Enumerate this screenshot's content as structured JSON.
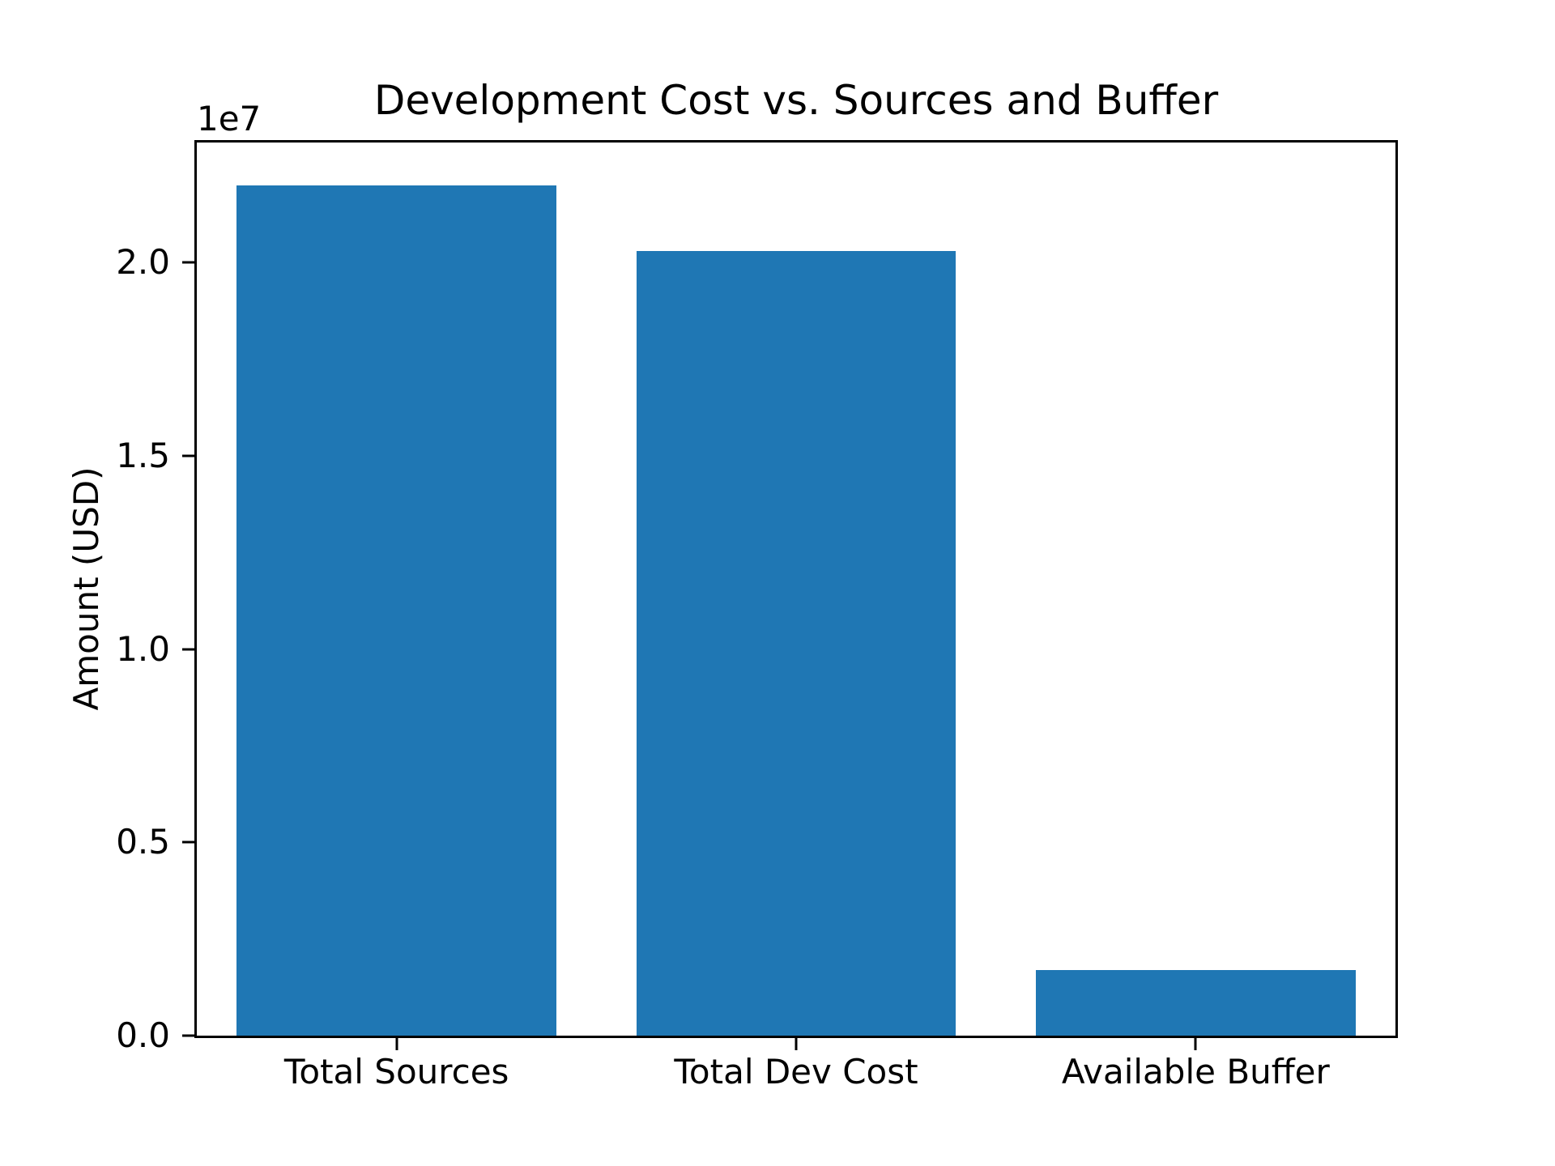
{
  "chart_data": {
    "type": "bar",
    "title": "Development Cost vs. Sources and Buffer",
    "xlabel": "",
    "ylabel": "Amount (USD)",
    "offset_text": "1e7",
    "categories": [
      "Total Sources",
      "Total Dev Cost",
      "Available Buffer"
    ],
    "values": [
      22000000,
      20300000,
      1700000
    ],
    "ylim": [
      0,
      23100000
    ],
    "yticks": [
      0,
      5000000,
      10000000,
      15000000,
      20000000
    ],
    "ytick_labels": [
      "0.0",
      "0.5",
      "1.0",
      "1.5",
      "2.0"
    ],
    "bar_color": "#1f77b4",
    "bar_width_fraction": 0.8,
    "grid": false,
    "legend": null,
    "background_color": "#ffffff",
    "spine_color": "#000000"
  }
}
